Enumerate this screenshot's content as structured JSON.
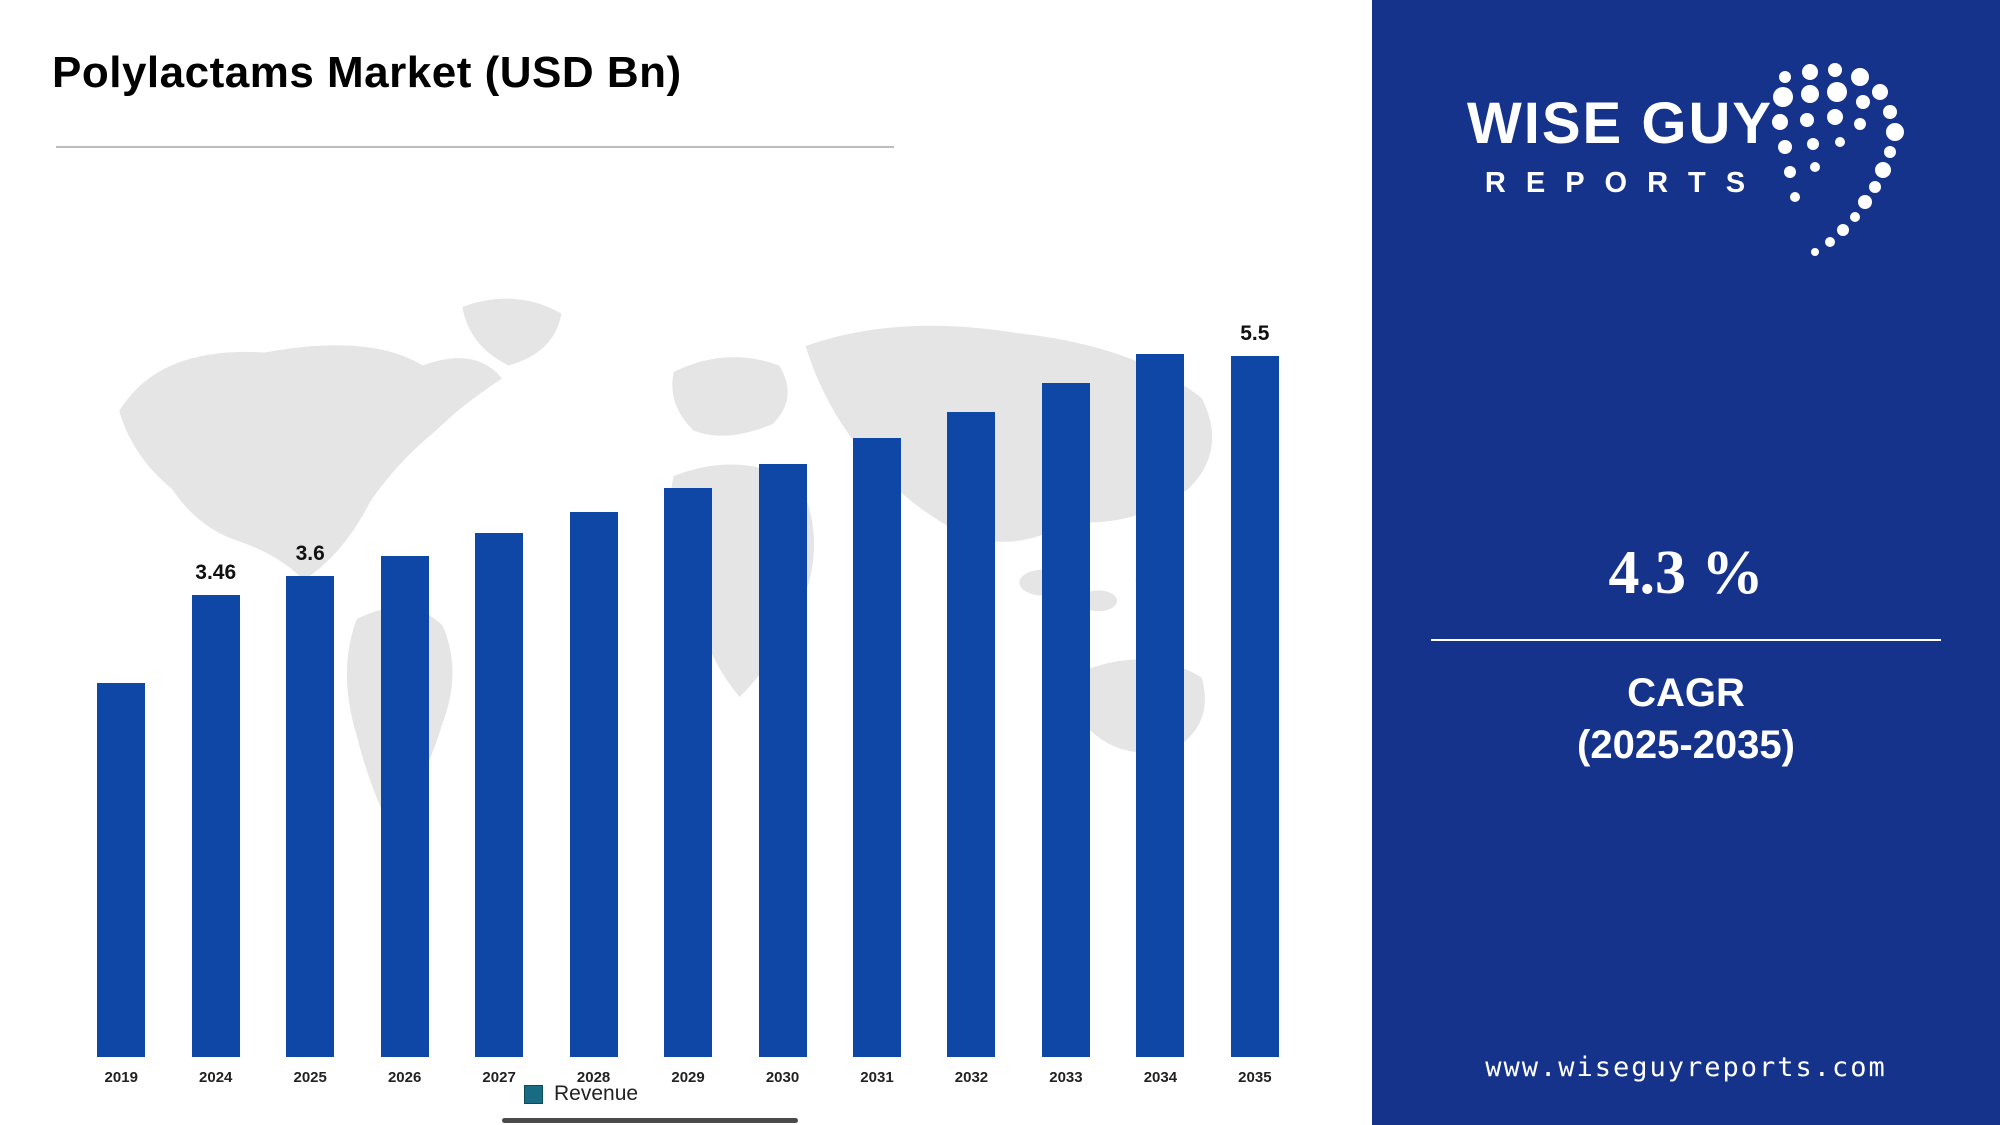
{
  "header": {
    "title": "Polylactams Market (USD Bn)"
  },
  "chart_data": {
    "type": "bar",
    "title": "Polylactams Market (USD Bn)",
    "categories": [
      "2019",
      "2024",
      "2025",
      "2026",
      "2027",
      "2028",
      "2029",
      "2030",
      "2031",
      "2032",
      "2033",
      "2034",
      "2035"
    ],
    "values": [
      2.8,
      3.46,
      3.6,
      3.75,
      3.92,
      4.08,
      4.26,
      4.44,
      4.63,
      4.83,
      5.04,
      5.26,
      5.5
    ],
    "bar_labels": [
      "",
      "3.46",
      "3.6",
      "",
      "",
      "",
      "",
      "",
      "",
      "",
      "",
      "",
      "5.5"
    ],
    "xlabel": "",
    "ylabel": "",
    "ylim": [
      0,
      5.5
    ],
    "grid": false,
    "bar_color": "#0f47a6",
    "legend_position": "bottom",
    "legend": [
      {
        "label": "Revenue",
        "color": "#176b83"
      }
    ]
  },
  "panel": {
    "bg_color": "#16338b",
    "logo": {
      "line1": "WISE GUY",
      "line2": "REPORTS"
    },
    "cagr_value": "4.3 %",
    "cagr_line1": "CAGR",
    "cagr_line2": "(2025-2035)",
    "website": "www.wiseguyreports.com"
  }
}
